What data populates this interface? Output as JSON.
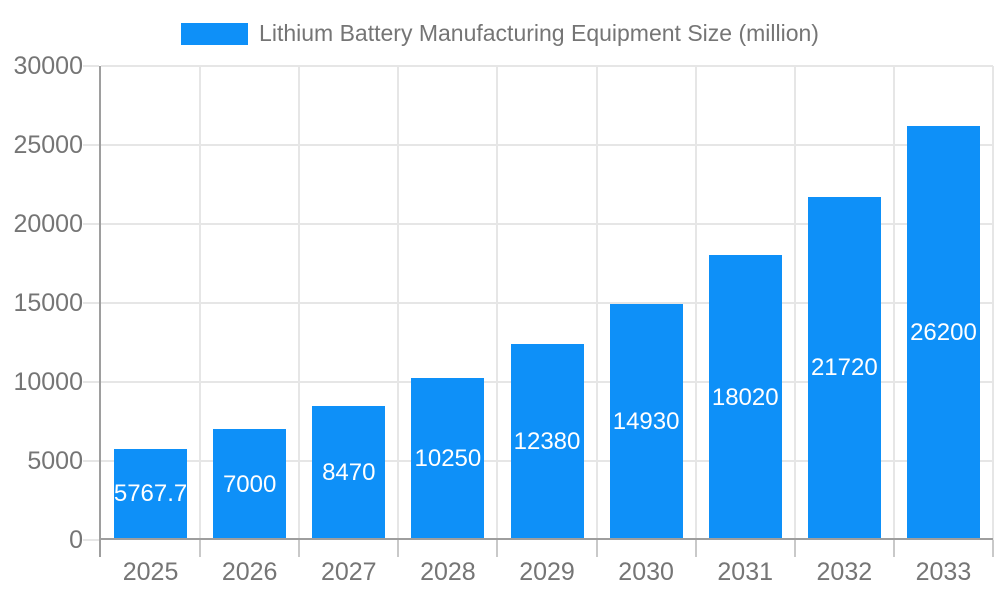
{
  "colors": {
    "bar": "#0e90f8",
    "grid": "#e6e6e6",
    "axis": "#9e9e9e",
    "xtick": "#c9c9c9",
    "label_text": "#757575",
    "value_text": "#ffffff",
    "background": "#ffffff"
  },
  "legend": {
    "label": "Lithium Battery Manufacturing Equipment Size (million)"
  },
  "chart_data": {
    "type": "bar",
    "title": "Lithium Battery Manufacturing Equipment Size (million)",
    "categories": [
      "2025",
      "2026",
      "2027",
      "2028",
      "2029",
      "2030",
      "2031",
      "2032",
      "2033"
    ],
    "values": [
      5767.7,
      7000,
      8470,
      10250,
      12380,
      14930,
      18020,
      21720,
      26200
    ],
    "labels": [
      "5767.7",
      "7000",
      "8470",
      "10250",
      "12380",
      "14930",
      "18020",
      "21720",
      "26200"
    ],
    "xlabel": "",
    "ylabel": "",
    "ylim": [
      0,
      30000
    ],
    "yticks": [
      0,
      5000,
      10000,
      15000,
      20000,
      25000,
      30000
    ],
    "ytick_labels": [
      "0",
      "5000",
      "10000",
      "15000",
      "20000",
      "25000",
      "30000"
    ],
    "grid": true,
    "legend_position": "top",
    "value_label_position": "center-inside"
  }
}
